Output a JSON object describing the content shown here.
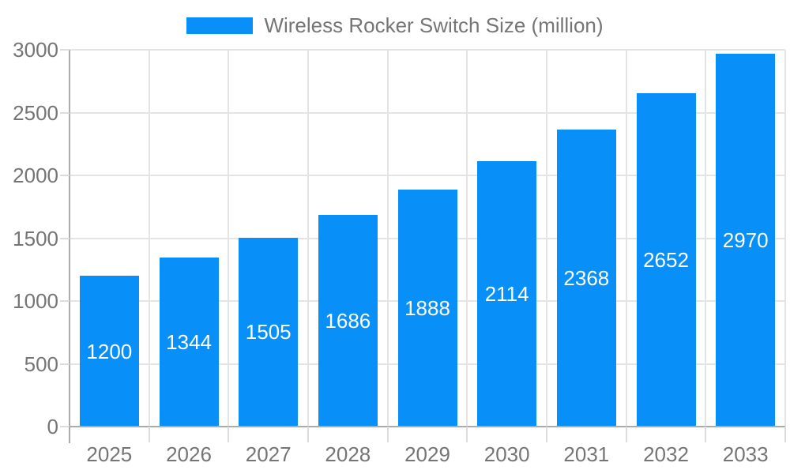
{
  "legend": {
    "label": "Wireless Rocker Switch Size (million)"
  },
  "colors": {
    "bar": "#0890F8",
    "axis_line": "#ABABAB",
    "gridline": "#E4E4E4",
    "tick": "#DCDCDC",
    "axis_label_text": "#757575",
    "value_label_text": "#FFFFFF",
    "background": "#FFFFFF"
  },
  "chart_data": {
    "type": "bar",
    "title": "Wireless Rocker Switch Size (million)",
    "categories": [
      "2025",
      "2026",
      "2027",
      "2028",
      "2029",
      "2030",
      "2031",
      "2032",
      "2033"
    ],
    "values": [
      1200,
      1344,
      1505,
      1686,
      1888,
      2114,
      2368,
      2652,
      2970
    ],
    "series_name": "Wireless Rocker Switch Size (million)",
    "xlabel": "",
    "ylabel": "",
    "ylim": [
      0,
      3000
    ],
    "yticks": [
      0,
      500,
      1000,
      1500,
      2000,
      2500,
      3000
    ],
    "grid": true,
    "legend_position": "top-center",
    "value_label_position": "inside-center"
  }
}
